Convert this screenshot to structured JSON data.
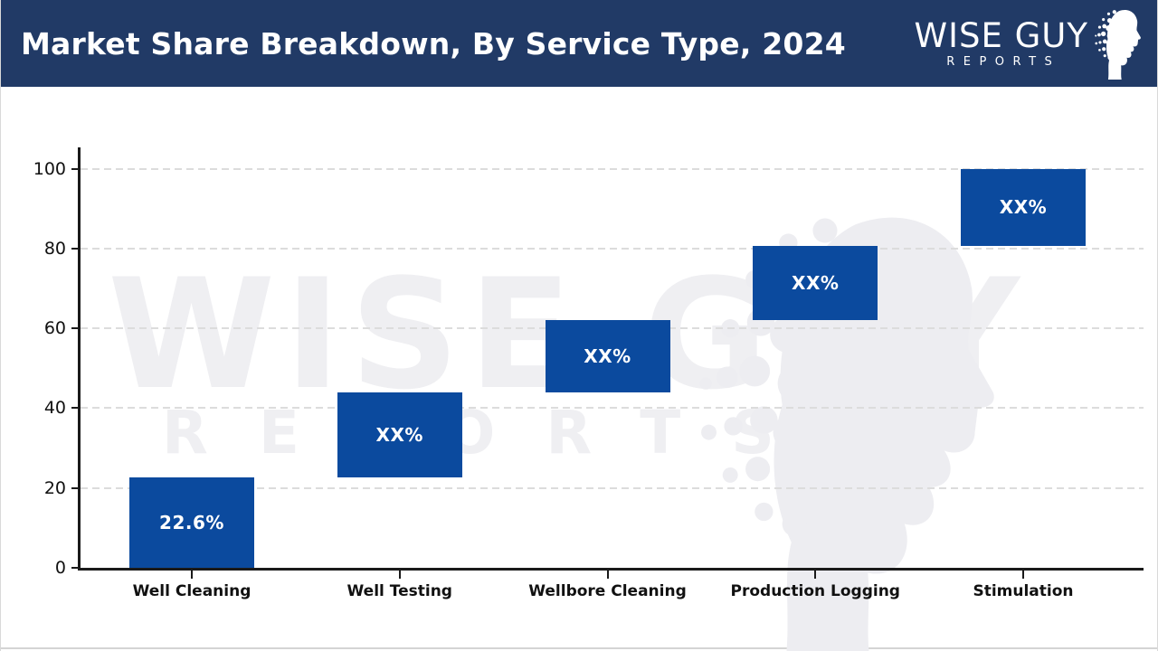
{
  "header": {
    "title": "Market Share Breakdown, By Service Type, 2024",
    "logo": {
      "primary": "WISE GUY",
      "secondary": "REPORTS"
    }
  },
  "watermark": {
    "primary": "WISE GUY",
    "secondary": "REPORTS"
  },
  "colors": {
    "header_bg": "#213a66",
    "bar": "#0b4a9e",
    "gridline": "#dcdcdc",
    "axis": "#1a1a1a"
  },
  "chart_data": {
    "type": "bar",
    "subtype": "waterfall-floating-bars",
    "title": "Market Share Breakdown, By Service Type, 2024",
    "xlabel": "",
    "ylabel": "",
    "ylim": [
      0,
      105
    ],
    "yticks": [
      0,
      20,
      40,
      60,
      80,
      100
    ],
    "grid": "horizontal-dashed",
    "legend": "none",
    "bar_color": "#0b4a9e",
    "categories": [
      "Well Cleaning",
      "Well Testing",
      "Wellbore Cleaning",
      "Production Logging",
      "Stimulation"
    ],
    "segments": [
      {
        "start": 0,
        "end": 22.6,
        "label": "22.6%"
      },
      {
        "start": 22.6,
        "end": 43.9,
        "label": "XX%"
      },
      {
        "start": 43.9,
        "end": 62.1,
        "label": "XX%"
      },
      {
        "start": 62.1,
        "end": 80.6,
        "label": "XX%"
      },
      {
        "start": 80.6,
        "end": 100,
        "label": "XX%"
      }
    ]
  }
}
